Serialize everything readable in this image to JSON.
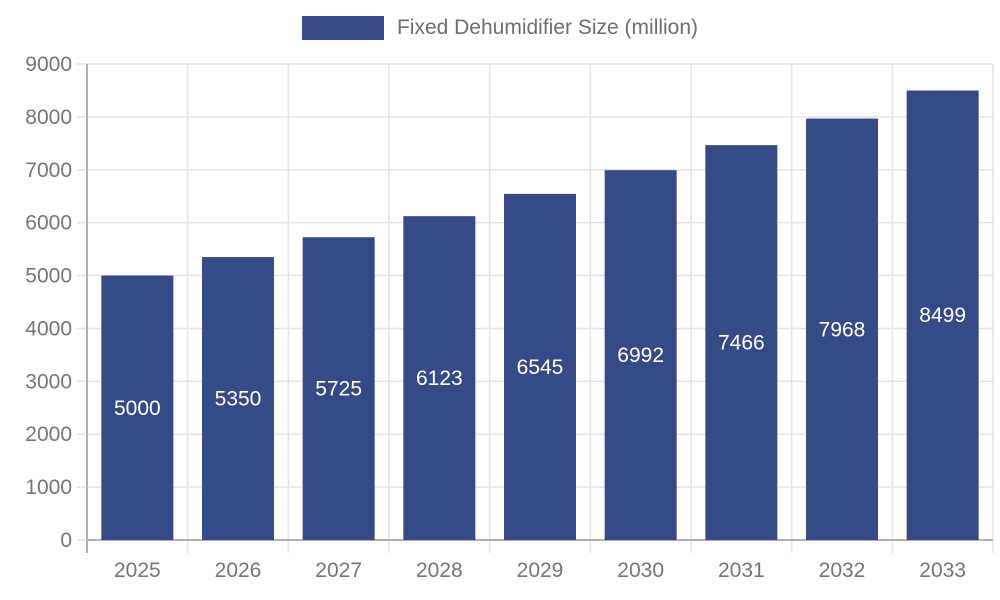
{
  "chart_data": {
    "type": "bar",
    "title": "Fixed Dehumidifier Size (million)",
    "legend_label": "Fixed Dehumidifier Size (million)",
    "legend_position": "top",
    "categories": [
      "2025",
      "2026",
      "2027",
      "2028",
      "2029",
      "2030",
      "2031",
      "2032",
      "2033"
    ],
    "values": [
      5000,
      5350,
      5725,
      6123,
      6545,
      6992,
      7466,
      7968,
      8499
    ],
    "xlabel": "",
    "ylabel": "",
    "ylim": [
      0,
      9000
    ],
    "ytick_step": 1000,
    "grid": true,
    "colors": {
      "bar": "#364a87",
      "grid": "#e3e3e3",
      "axis": "#b0b0b0",
      "axis_label": "#757575",
      "value_label": "#ffffff",
      "legend_text": "#6e6e6e"
    }
  }
}
